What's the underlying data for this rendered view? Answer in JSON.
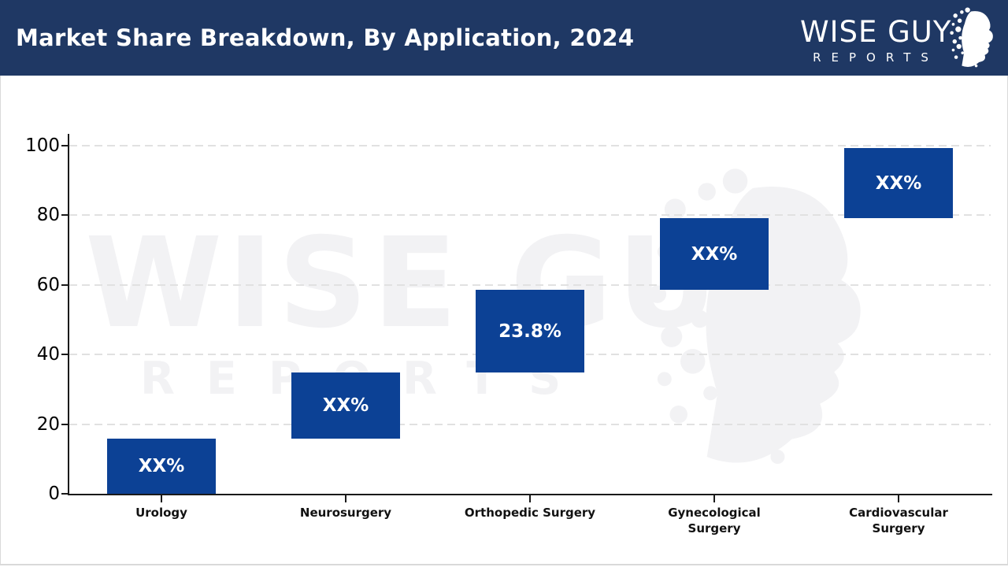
{
  "header": {
    "title": "Market Share Breakdown, By Application, 2024",
    "bg_color": "#1f3864",
    "logo": {
      "line1": "WISE GUY",
      "line2": "REPORTS"
    }
  },
  "watermark": {
    "line1": "WISE GUY",
    "line2": "REPORTS"
  },
  "chart_data": {
    "type": "bar",
    "subtype": "waterfall-segment-breakdown",
    "title": "Market Share Breakdown, By Application, 2024",
    "categories": [
      "Urology",
      "Neurosurgery",
      "Orthopedic Surgery",
      "Gynecological Surgery",
      "Cardiovascular Surgery"
    ],
    "bars": [
      {
        "category": "Urology",
        "display": "Urology",
        "start": 0,
        "end": 15.8,
        "label": "XX%"
      },
      {
        "category": "Neurosurgery",
        "display": "Neurosurgery",
        "start": 15.8,
        "end": 34.8,
        "label": "XX%"
      },
      {
        "category": "Orthopedic Surgery",
        "display": "Orthopedic Surgery",
        "start": 34.8,
        "end": 58.6,
        "label": "23.8%"
      },
      {
        "category": "Gynecological Surgery",
        "display": "Gynecological\nSurgery",
        "start": 58.6,
        "end": 79.1,
        "label": "XX%"
      },
      {
        "category": "Cardiovascular Surgery",
        "display": "Cardiovascular\nSurgery",
        "start": 79.1,
        "end": 99.4,
        "label": "XX%"
      }
    ],
    "y_ticks": [
      0,
      20,
      40,
      60,
      80,
      100
    ],
    "ylim": [
      0,
      100
    ],
    "xlabel": "",
    "ylabel": "",
    "bar_color": "#0c4195",
    "grid": "horizontal-dashed",
    "legend": "none"
  }
}
